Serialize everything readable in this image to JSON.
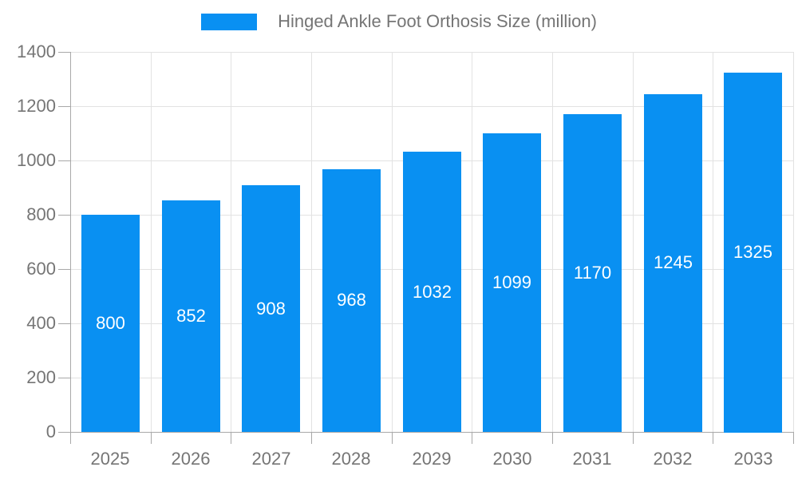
{
  "legend": {
    "label": "Hinged Ankle Foot Orthosis Size (million)",
    "swatch_color": "#0990F2",
    "text_color": "#757575"
  },
  "chart_data": {
    "type": "bar",
    "title": "",
    "xlabel": "",
    "ylabel": "",
    "categories": [
      "2025",
      "2026",
      "2027",
      "2028",
      "2029",
      "2030",
      "2031",
      "2032",
      "2033"
    ],
    "series": [
      {
        "name": "Hinged Ankle Foot Orthosis Size (million)",
        "values": [
          800,
          852,
          908,
          968,
          1032,
          1099,
          1170,
          1245,
          1325
        ]
      }
    ],
    "value_labels_shown": true,
    "ylim": [
      0,
      1400
    ],
    "y_ticks": [
      0,
      200,
      400,
      600,
      800,
      1000,
      1200,
      1400
    ],
    "grid": true,
    "legend_position": "top",
    "colors": {
      "bar": "#0990F2",
      "value_label": "#ffffff",
      "axis_text": "#757575",
      "gridline": "#e2e2e2",
      "axis_line": "#a8a8a8"
    }
  }
}
